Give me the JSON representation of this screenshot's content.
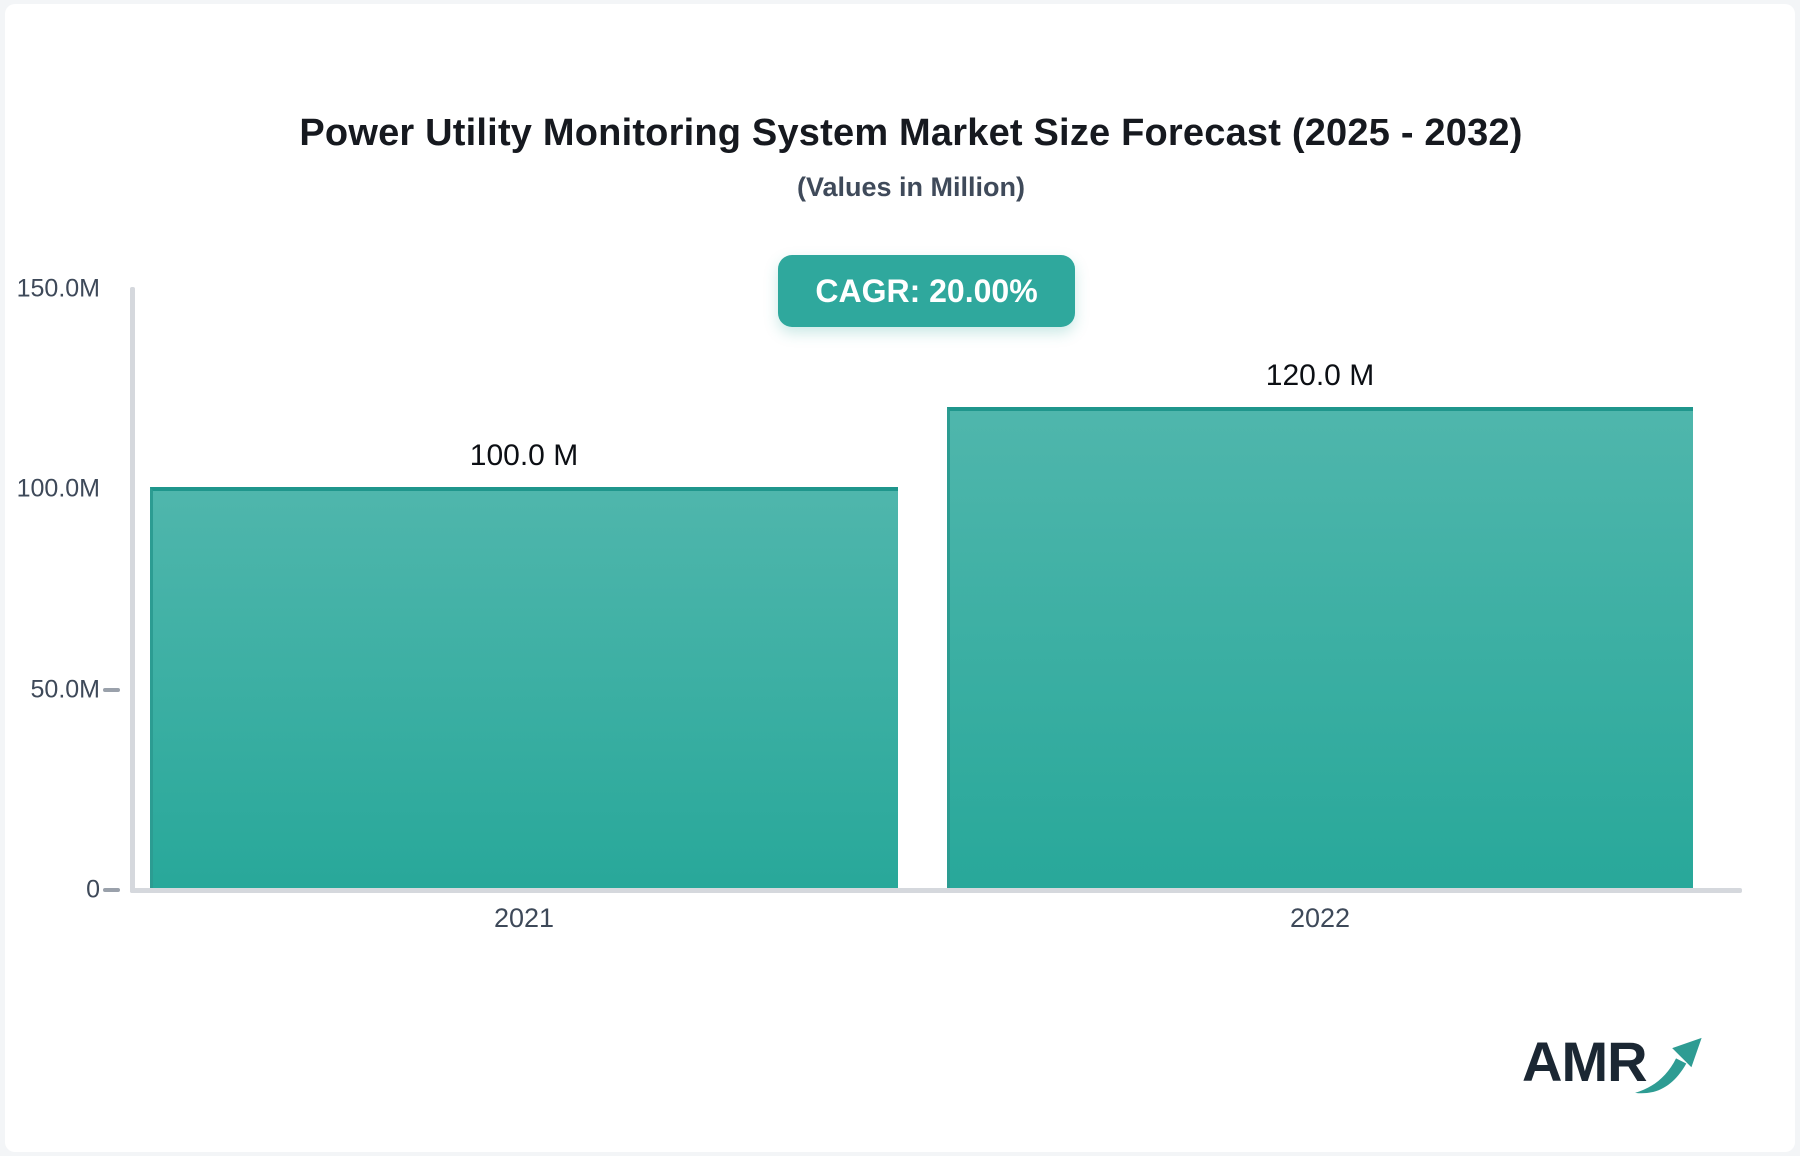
{
  "header": {
    "title": "Power Utility Monitoring System Market Size Forecast (2025 - 2032)",
    "subtitle": "(Values in Million)"
  },
  "badge": {
    "label": "CAGR: 20.00%",
    "background": "#2fa89d",
    "text_color": "#ffffff"
  },
  "chart_data": {
    "type": "bar",
    "title": "Power Utility Monitoring System Market Size Forecast (2025 - 2032)",
    "subtitle": "(Values in Million)",
    "unit": "Million",
    "cagr_percent": "20.00%",
    "categories": [
      "2021",
      "2022"
    ],
    "values": [
      100.0,
      120.0
    ],
    "value_labels": [
      "100.0 M",
      "120.0 M"
    ],
    "ylim": [
      0,
      150
    ],
    "yticks": [
      {
        "value": 150,
        "label": "150.0M",
        "dash": false
      },
      {
        "value": 100,
        "label": "100.0M",
        "dash": false
      },
      {
        "value": 50,
        "label": "50.0M",
        "dash": true
      },
      {
        "value": 0,
        "label": "0",
        "dash": true
      }
    ],
    "grid": false,
    "legend": "none",
    "colors": {
      "bar_gradient_top": "#4fb6ac",
      "bar_gradient_bottom": "#28a89a",
      "bar_top_border": "#1f968c",
      "bar_left_edge": "#2c9c92",
      "axis_line": "#d5d8dd",
      "tick_dash": "#9aa1ab",
      "tick_text": "#3e4959",
      "value_text": "#0c0f14"
    }
  },
  "logo": {
    "text": "AMR",
    "text_color": "#1b2733",
    "arrow_color": "#2e9c93"
  }
}
